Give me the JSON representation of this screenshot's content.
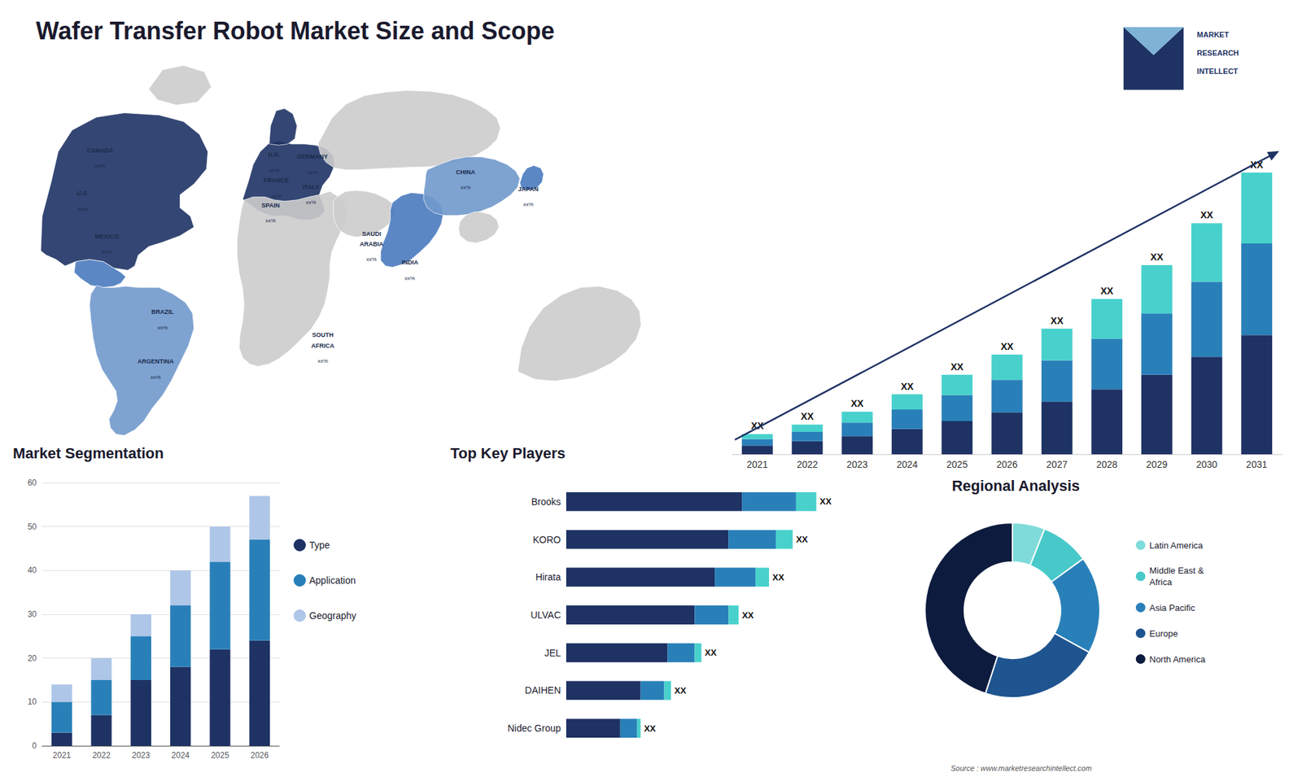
{
  "title": "Wafer Transfer Robot Market Size and Scope",
  "annotations": [
    "Source : www.marketresearchintellect.com",
    "MARKET",
    "RESEARCH",
    "INTELLECT"
  ],
  "chart_data": [
    {
      "type": "map",
      "colors": [
        "#cccccc",
        "#1e3264",
        "#4a7abf",
        "#7099cc",
        "#1e3264",
        "#1e3264",
        "#cccccc",
        "#cccccc",
        "#cccccc",
        "#4a7abf",
        "#7099cc",
        "#cccccc",
        "#4a7abf",
        "#cccccc"
      ],
      "annotations": [
        {
          "name": "CANADA",
          "label": "xx%"
        },
        {
          "name": "U.S.",
          "label": "xx%"
        },
        {
          "name": "MEXICO",
          "label": "xx%"
        },
        {
          "name": "BRAZIL",
          "label": "xx%"
        },
        {
          "name": "ARGENTINA",
          "label": "xx%"
        },
        {
          "name": "U.K.",
          "label": "xx%"
        },
        {
          "name": "FRANCE",
          "label": "xx%"
        },
        {
          "name": "SPAIN",
          "label": "xx%"
        },
        {
          "name": "GERMANY",
          "label": "xx%"
        },
        {
          "name": "ITALY",
          "label": "xx%"
        },
        {
          "name": "SOUTH\nAFRICA",
          "label": "xx%"
        },
        {
          "name": "SAUDI\nARABIA",
          "label": "xx%"
        },
        {
          "name": "INDIA",
          "label": "xx%"
        },
        {
          "name": "CHINA",
          "label": "xx%"
        },
        {
          "name": "JAPAN",
          "label": "xx%"
        }
      ]
    },
    {
      "type": "bar",
      "stacked": true,
      "categories": [
        "2021",
        "2022",
        "2023",
        "2024",
        "2025",
        "2026",
        "2027",
        "2028",
        "2029",
        "2030",
        "2031"
      ],
      "series": [
        {
          "color": "#1e3264",
          "values": [
            1.2,
            1.8,
            2.5,
            3.5,
            4.6,
            5.8,
            7.3,
            9.0,
            11.0,
            13.5,
            16.5
          ]
        },
        {
          "color": "#2980b9",
          "values": [
            0.9,
            1.3,
            1.9,
            2.7,
            3.6,
            4.5,
            5.7,
            7.0,
            8.5,
            10.4,
            12.7
          ]
        },
        {
          "color": "#48d1cc",
          "values": [
            0.7,
            1.0,
            1.5,
            2.1,
            2.8,
            3.5,
            4.4,
            5.5,
            6.7,
            8.1,
            9.8
          ]
        }
      ],
      "annotations": [
        "XX",
        "XX",
        "XX",
        "XX",
        "XX",
        "XX",
        "XX",
        "XX",
        "XX",
        "XX",
        "XX"
      ],
      "ylim": [
        0,
        50.7
      ],
      "tick_labels": "x",
      "grid": false
    },
    {
      "type": "bar",
      "title": "Market Segmentation",
      "stacked": true,
      "categories": [
        "2021",
        "2022",
        "2023",
        "2024",
        "2025",
        "2026"
      ],
      "series": [
        {
          "name": "Type",
          "color": "#1e3264",
          "values": [
            3,
            7,
            15,
            18,
            22,
            24
          ]
        },
        {
          "name": "Application",
          "color": "#2980b9",
          "values": [
            7,
            8,
            10,
            14,
            20,
            23
          ]
        },
        {
          "name": "Geography",
          "color": "#aec6e8",
          "values": [
            4,
            5,
            5,
            8,
            8,
            10
          ]
        }
      ],
      "ylim": [
        0,
        60
      ],
      "yticks": [
        0,
        10,
        20,
        30,
        40,
        50,
        60
      ],
      "grid": true,
      "legend": "right"
    },
    {
      "type": "bar",
      "title": "Top Key Players",
      "orientation": "horizontal",
      "stacked": true,
      "categories": [
        "Brooks",
        "KORO",
        "Hirata",
        "ULVAC",
        "JEL",
        "DAIHEN",
        "Nidec Group"
      ],
      "series": [
        {
          "color": "#1e3264",
          "values": [
            0.52,
            0.48,
            0.44,
            0.38,
            0.3,
            0.22,
            0.16
          ]
        },
        {
          "color": "#2980b9",
          "values": [
            0.16,
            0.14,
            0.12,
            0.1,
            0.08,
            0.07,
            0.05
          ]
        },
        {
          "color": "#48d1cc",
          "values": [
            0.06,
            0.05,
            0.04,
            0.03,
            0.02,
            0.02,
            0.01
          ]
        }
      ],
      "annotations": [
        "XX",
        "XX",
        "XX",
        "XX",
        "XX",
        "XX",
        "XX"
      ],
      "xlim": [
        0,
        0.925
      ],
      "tick_labels": "y",
      "grid": false
    },
    {
      "type": "pie",
      "title": "Regional Analysis",
      "categories": [
        "Latin America",
        "Middle East &\nAfrica",
        "Asia Pacific",
        "Europe",
        "North America"
      ],
      "values": [
        6,
        9,
        18,
        22,
        45
      ],
      "colors": [
        "#7fdbda",
        "#48c9c9",
        "#2980b9",
        "#1e5490",
        "#0d1b3e"
      ],
      "legend": "right"
    }
  ]
}
